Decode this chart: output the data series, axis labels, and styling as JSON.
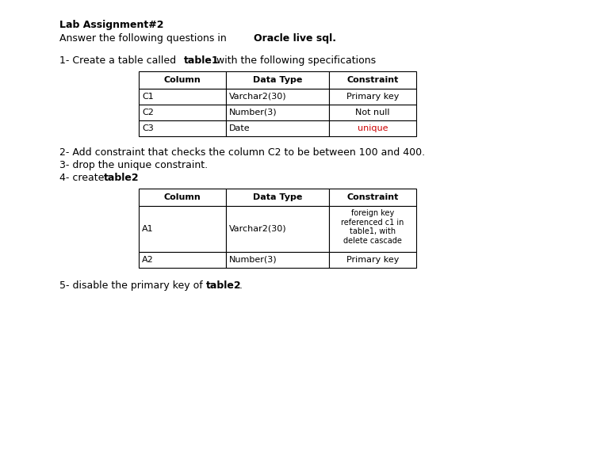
{
  "title_line1": "Lab Assignment#2",
  "line2_normal": "Answer the following questions in ",
  "line2_bold": "Oracle live sql.",
  "para1_normal1": "1- Create a table called ",
  "para1_bold": "table1",
  "para1_normal2": " with the following specifications",
  "table1_headers": [
    "Column",
    "Data Type",
    "Constraint"
  ],
  "table1_rows": [
    [
      "C1",
      "Varchar2(30)",
      "Primary key"
    ],
    [
      "C2",
      "Number(3)",
      "Not null"
    ],
    [
      "C3",
      "Date",
      "unique"
    ]
  ],
  "table1_constraint_colors": [
    "#000000",
    "#000000",
    "#cc0000"
  ],
  "para2": "2- Add constraint that checks the column C2 to be between 100 and 400.",
  "para3": "3- drop the unique constraint.",
  "para4_normal": "4- create ",
  "para4_bold": "table2",
  "table2_headers": [
    "Column",
    "Data Type",
    "Constraint"
  ],
  "table2_rows": [
    [
      "A1",
      "Varchar2(30)",
      "foreign key\nreferenced c1 in\ntable1, with\ndelete cascade"
    ],
    [
      "A2",
      "Number(3)",
      "Primary key"
    ]
  ],
  "para5_normal1": "5- disable the primary key of ",
  "para5_bold": "table2",
  "para5_normal2": " .",
  "bg_color": "#ffffff",
  "font_size": 9,
  "table_font_size": 8,
  "small_font_size": 7
}
